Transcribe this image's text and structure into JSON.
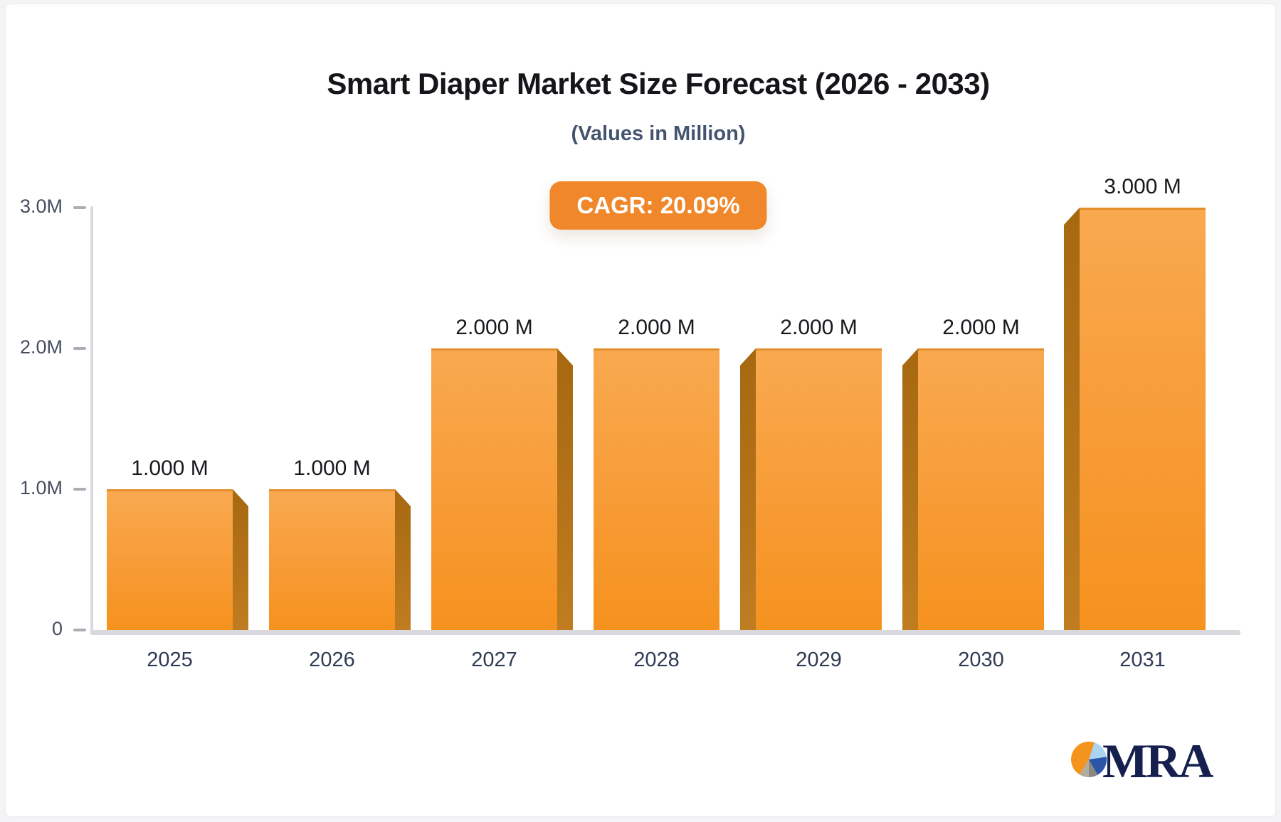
{
  "header": {
    "title": "Smart Diaper Market Size Forecast (2026 - 2033)",
    "subtitle": "(Values in Million)",
    "cagr_badge": "CAGR: 20.09%"
  },
  "chart_data": {
    "type": "bar",
    "title": "Smart Diaper Market Size Forecast (2026 - 2033)",
    "subtitle": "(Values in Million)",
    "unit": "Million (M)",
    "categories": [
      "2025",
      "2026",
      "2027",
      "2028",
      "2029",
      "2030",
      "2031"
    ],
    "values": [
      1.0,
      1.0,
      2.0,
      2.0,
      2.0,
      2.0,
      3.0
    ],
    "value_labels": [
      "1.000 M",
      "1.000 M",
      "2.000 M",
      "2.000 M",
      "2.000 M",
      "2.000 M",
      "3.000 M"
    ],
    "xlabel": "",
    "ylabel": "",
    "ylim": [
      0,
      3.0
    ],
    "yticks": [
      {
        "label": "0",
        "value": 0
      },
      {
        "label": "1.0M",
        "value": 1
      },
      {
        "label": "2.0M",
        "value": 2
      },
      {
        "label": "3.0M",
        "value": 3
      }
    ],
    "grid": false,
    "legend": false,
    "annotation": "CAGR: 20.09%",
    "bar_sides": [
      "right",
      "right",
      "right",
      "none",
      "left",
      "left",
      "left"
    ]
  },
  "branding": {
    "logo_text": "MRA"
  },
  "colors": {
    "bar_gradient_top": "#f9a950",
    "bar_gradient_bottom": "#f6921e",
    "bar_side_dark": "#b06d15",
    "badge_background": "#f0882b",
    "badge_text": "#ffffff",
    "axis_line": "#d9d9dd",
    "title_text": "#14161a",
    "subtitle_text": "#44546f",
    "ytick_text": "#454e5f",
    "category_text": "#2f3b54",
    "value_label_text": "#17191d",
    "logo_navy": "#16204e",
    "logo_pie_orange": "#f5941d",
    "logo_pie_lightblue": "#aad4f1",
    "logo_pie_blue": "#2b55a6",
    "logo_pie_gray": "#9b958c"
  }
}
